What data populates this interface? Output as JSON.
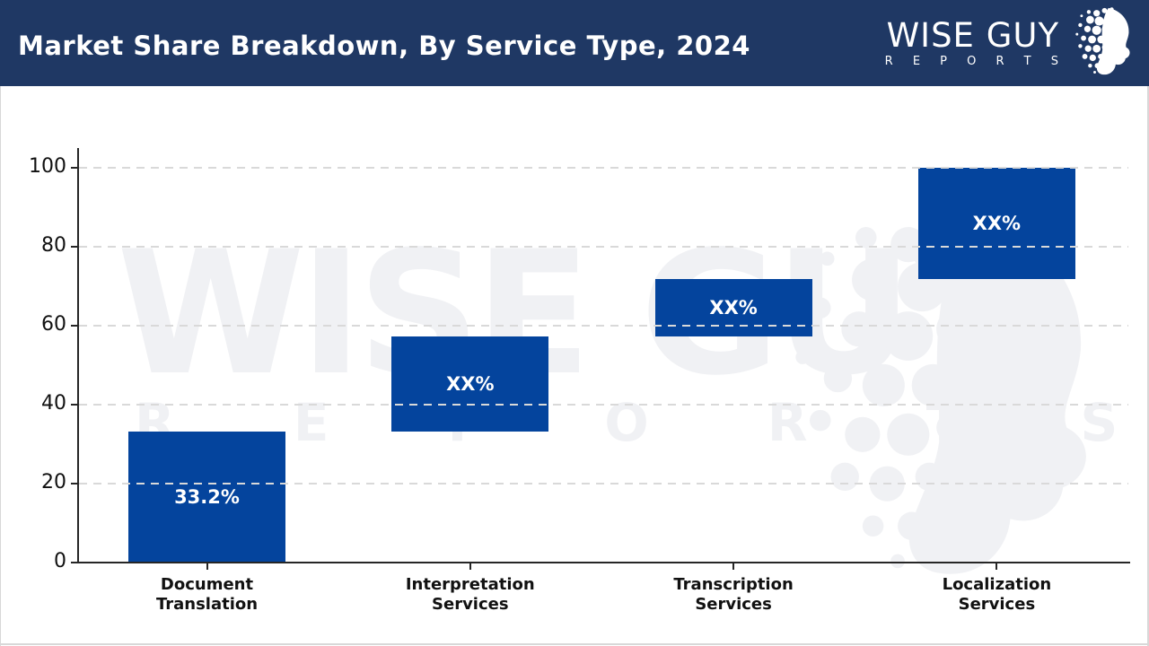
{
  "header": {
    "title": "Market Share Breakdown, By Service Type, 2024",
    "logo": {
      "line1": "WISE GUY",
      "line2": "R E P O R T S"
    }
  },
  "watermark": {
    "line1": "WISE GUY",
    "line2": "R E P O R T S"
  },
  "colors": {
    "header_bg": "#1f3864",
    "bar": "#04449d",
    "grid": "#d9d9d9",
    "axis": "#262626",
    "watermark": "#f0f1f4",
    "frame": "#d8d8d8",
    "bar_label": "#ffffff"
  },
  "chart_data": {
    "type": "bar",
    "variant": "waterfall",
    "title": "Market Share Breakdown, By Service Type, 2024",
    "categories": [
      "Document\nTranslation",
      "Interpretation\nServices",
      "Transcription\nServices",
      "Localization\nServices"
    ],
    "segments": [
      {
        "category": "Document Translation",
        "start": 0,
        "end": 33.2,
        "label": "33.2%"
      },
      {
        "category": "Interpretation Services",
        "start": 33.2,
        "end": 57.3,
        "label": "XX%"
      },
      {
        "category": "Transcription Services",
        "start": 57.3,
        "end": 71.8,
        "label": "XX%"
      },
      {
        "category": "Localization Services",
        "start": 71.8,
        "end": 100,
        "label": "XX%"
      }
    ],
    "ylim": [
      0,
      100
    ],
    "yticks": [
      0,
      20,
      40,
      60,
      80,
      100
    ],
    "grid": "horizontal-dashed",
    "legend": "none",
    "bar_color": "#04449d",
    "value_label_color": "#ffffff",
    "xlabel": "",
    "ylabel": ""
  }
}
